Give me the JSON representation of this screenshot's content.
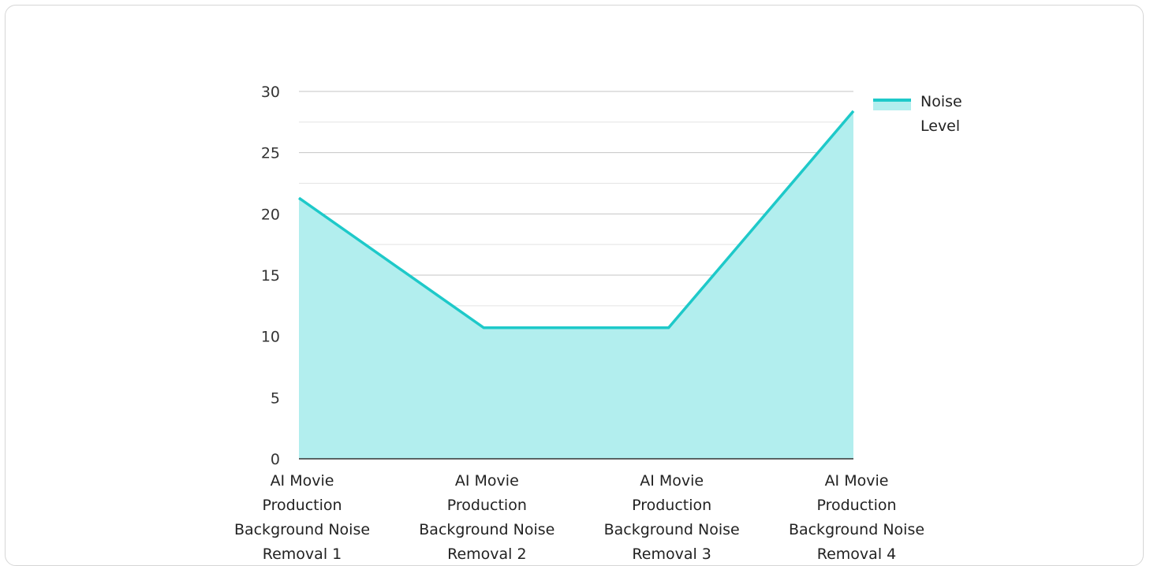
{
  "chart_data": {
    "type": "area",
    "title": "",
    "xlabel": "",
    "ylabel": "",
    "categories": [
      [
        "AI Movie",
        "Production",
        "Background Noise",
        "Removal 1"
      ],
      [
        "AI Movie",
        "Production",
        "Background Noise",
        "Removal 2"
      ],
      [
        "AI Movie",
        "Production",
        "Background Noise",
        "Removal 3"
      ],
      [
        "AI Movie",
        "Production",
        "Background Noise",
        "Removal 4"
      ]
    ],
    "series": [
      {
        "name": "Noise Level",
        "values": [
          21.3,
          10.7,
          10.7,
          28.4
        ]
      }
    ],
    "ylim": [
      0,
      30
    ],
    "yticks": [
      0,
      5,
      10,
      15,
      20,
      25,
      30
    ],
    "grid": true,
    "legend": "right",
    "colors": {
      "line": "#1ec9c9",
      "fill": "#b2eeee",
      "grid_major": "#c4c4c4",
      "grid_minor": "#e4e4e4",
      "axis": "#333333"
    }
  },
  "legend": {
    "lines": [
      "Noise",
      "Level"
    ]
  }
}
